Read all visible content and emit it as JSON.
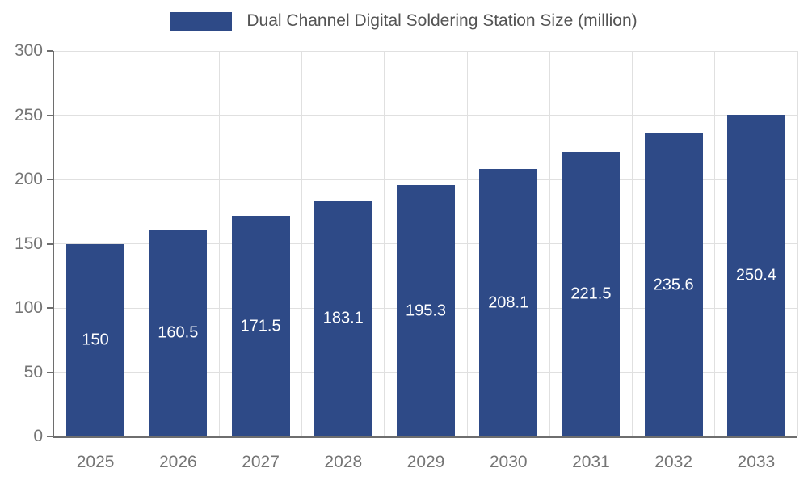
{
  "chart_data": {
    "type": "bar",
    "title": "Dual Channel Digital Soldering Station Size (million)",
    "categories": [
      "2025",
      "2026",
      "2027",
      "2028",
      "2029",
      "2030",
      "2031",
      "2032",
      "2033"
    ],
    "values": [
      150,
      160.5,
      171.5,
      183.1,
      195.3,
      208.1,
      221.5,
      235.6,
      250.4
    ],
    "value_labels": [
      "150",
      "160.5",
      "171.5",
      "183.1",
      "195.3",
      "208.1",
      "221.5",
      "235.6",
      "250.4"
    ],
    "xlabel": "",
    "ylabel": "",
    "ylim": [
      0,
      300
    ],
    "yticks": [
      0,
      50,
      100,
      150,
      200,
      250,
      300
    ],
    "grid": true,
    "legend_position": "top",
    "bar_color": "#2e4a87",
    "label_color": "#ffffff",
    "axis_color": "#6e6e6e",
    "tick_label_color": "#757575",
    "grid_color": "#e0e0e0",
    "background": "#ffffff"
  }
}
